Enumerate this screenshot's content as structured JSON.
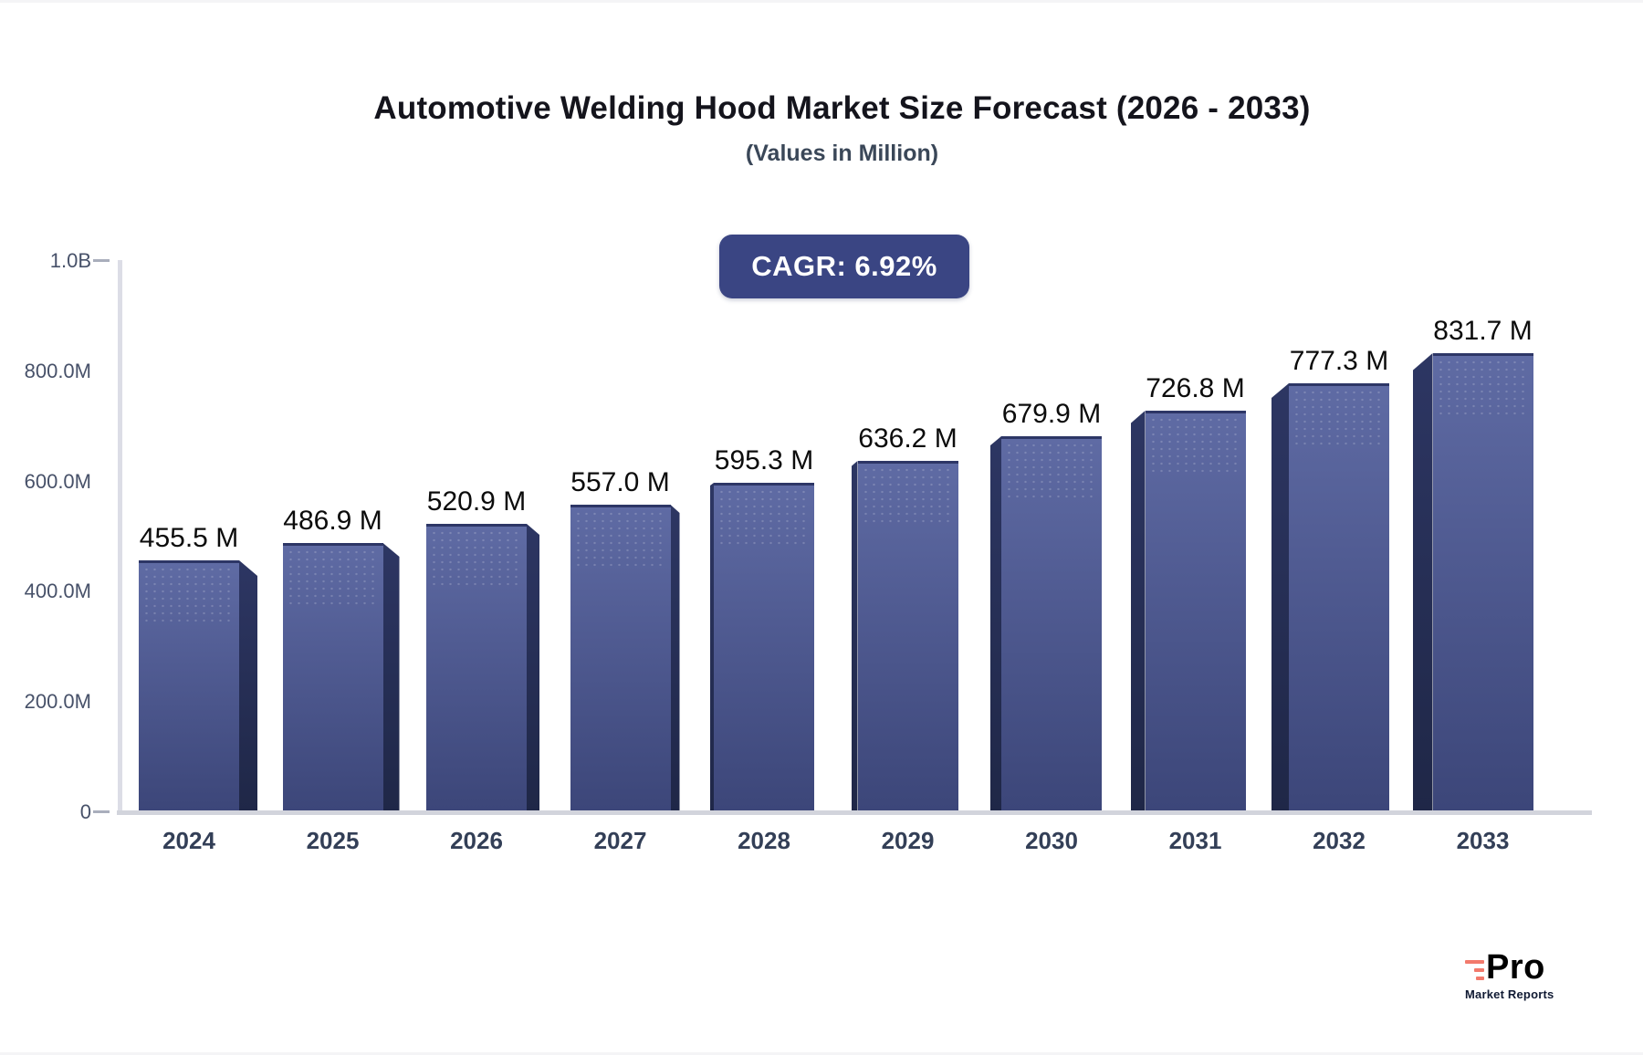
{
  "header": {
    "title": "Automotive Welding Hood Market Size Forecast (2026 - 2033)",
    "subtitle": "(Values in Million)"
  },
  "badge": {
    "label": "CAGR: 6.92%"
  },
  "chart_data": {
    "type": "bar",
    "title": "Automotive Welding Hood Market Size Forecast (2026 - 2033)",
    "subtitle": "(Values in Million)",
    "cagr": "6.92%",
    "categories": [
      "2024",
      "2025",
      "2026",
      "2027",
      "2028",
      "2029",
      "2030",
      "2031",
      "2032",
      "2033"
    ],
    "values": [
      455.5,
      486.9,
      520.9,
      557.0,
      595.3,
      636.2,
      679.9,
      726.8,
      777.3,
      831.7
    ],
    "value_labels": [
      "455.5 M",
      "486.9 M",
      "520.9 M",
      "557.0 M",
      "595.3 M",
      "636.2 M",
      "679.9 M",
      "726.8 M",
      "777.3 M",
      "831.7 M"
    ],
    "unit": "Million",
    "xlabel": "",
    "ylabel": "",
    "ylim": [
      0,
      1000
    ],
    "grid": false,
    "legend": "none",
    "y_ticks": [
      {
        "label": "0",
        "value": 0,
        "dash": true
      },
      {
        "label": "200.0M",
        "value": 200,
        "dash": false
      },
      {
        "label": "400.0M",
        "value": 400,
        "dash": false
      },
      {
        "label": "600.0M",
        "value": 600,
        "dash": false
      },
      {
        "label": "800.0M",
        "value": 800,
        "dash": false
      },
      {
        "label": "1.0B",
        "value": 1000,
        "dash": true
      }
    ]
  },
  "colors": {
    "badge_bg": "#3a4583",
    "bar_front_top": "#5f6ba4",
    "bar_front_bottom": "#3c4679",
    "bar_side": "#242d55",
    "axis_line": "#d2d4dc",
    "logo_accent": "#f27a6c"
  },
  "logo": {
    "name": "Pro",
    "tagline": "Market Reports"
  }
}
